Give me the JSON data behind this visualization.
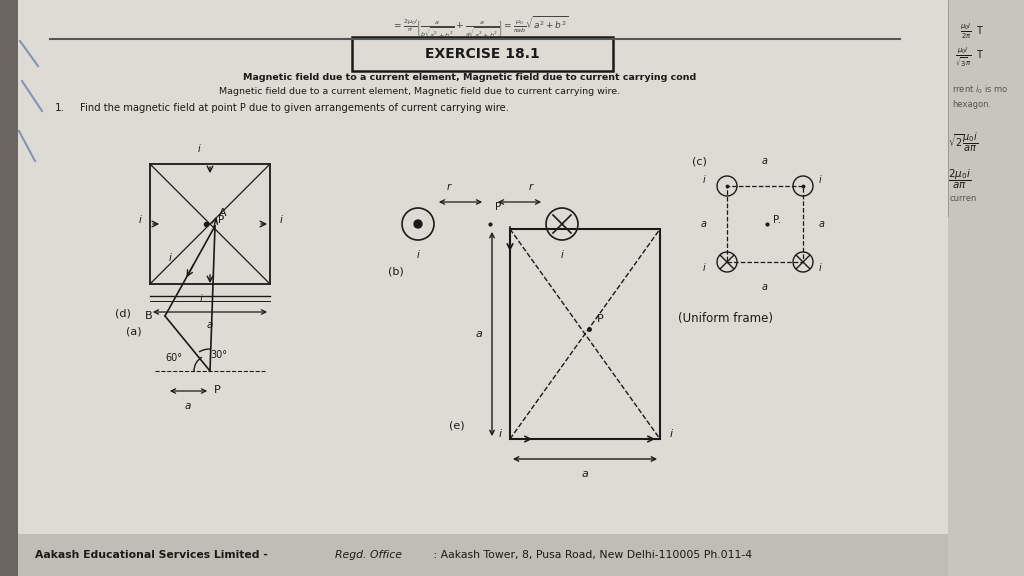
{
  "bg_color": "#b8b4ac",
  "page_color": "#dddbd4",
  "dark": "#1a1a1a",
  "gray": "#555555",
  "lightgray": "#888888",
  "title": "EXERCISE 18.1",
  "subtitle_bold": "Magnetic field due to a current element, Magnetic field due to current carrying cond",
  "subtitle_normal": "Magnetic field due to a current element, Magnetic field due to current carrying wire.",
  "question": "Find the magnetic field at point P due to given arrangements of current carrying wire.",
  "footer_bold": "Aakash Educational Services Limited - ",
  "footer_italic": "Regd. Office",
  "footer_normal": " : Aakash Tower, 8, Pusa Road, New Delhi-110005 Ph.011-4"
}
